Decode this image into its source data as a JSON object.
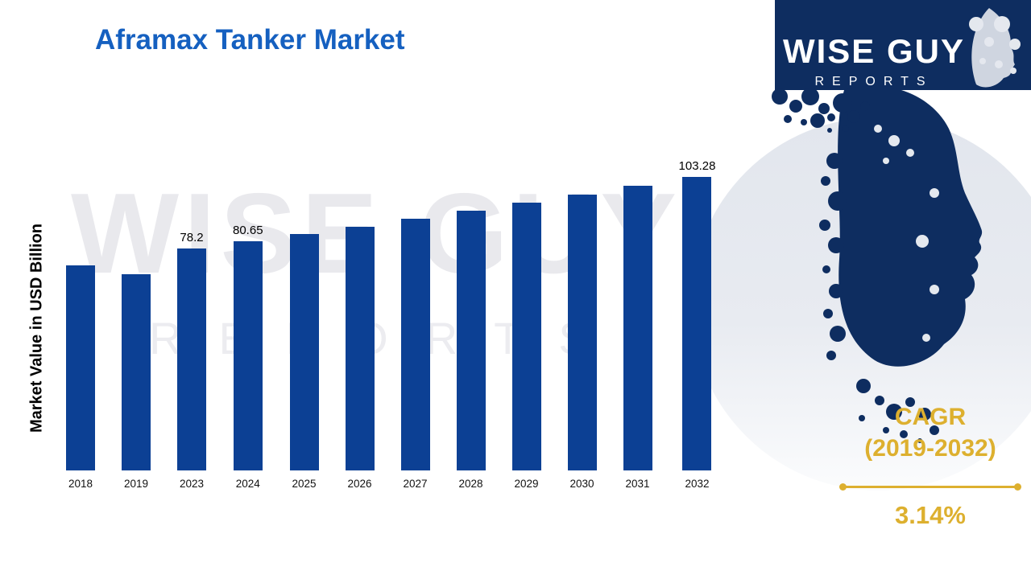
{
  "page": {
    "title": "Aframax Tanker Market"
  },
  "watermark": {
    "line1": "WISE GUY",
    "line2": "REPORTS"
  },
  "logo": {
    "line1": "WISE GUY",
    "line2": "REPORTS"
  },
  "cagr": {
    "label": "CAGR",
    "range": "(2019-2032)",
    "value": "3.14%"
  },
  "colors": {
    "title_blue": "#1560c0",
    "bar_blue": "#0c4094",
    "navy": "#0e2d60",
    "gold": "#ddb02f",
    "circle_gray": "#e3e7ee",
    "watermark_gray": "#e9e9ed"
  },
  "chart_data": {
    "type": "bar",
    "title": "Aframax Tanker Market",
    "xlabel": "",
    "ylabel": "Market Value in USD Billion",
    "categories": [
      "2018",
      "2019",
      "2023",
      "2024",
      "2025",
      "2026",
      "2027",
      "2028",
      "2029",
      "2030",
      "2031",
      "2032"
    ],
    "values": [
      72.2,
      69.1,
      78.2,
      80.65,
      83.2,
      85.8,
      88.5,
      91.3,
      94.1,
      97.1,
      100.1,
      103.28
    ],
    "value_labels": [
      "",
      "",
      "78.2",
      "80.65",
      "",
      "",
      "",
      "",
      "",
      "",
      "",
      "103.28"
    ],
    "ylim": [
      0,
      110
    ],
    "grid": false,
    "legend": false,
    "bar_color": "#0c4094"
  }
}
